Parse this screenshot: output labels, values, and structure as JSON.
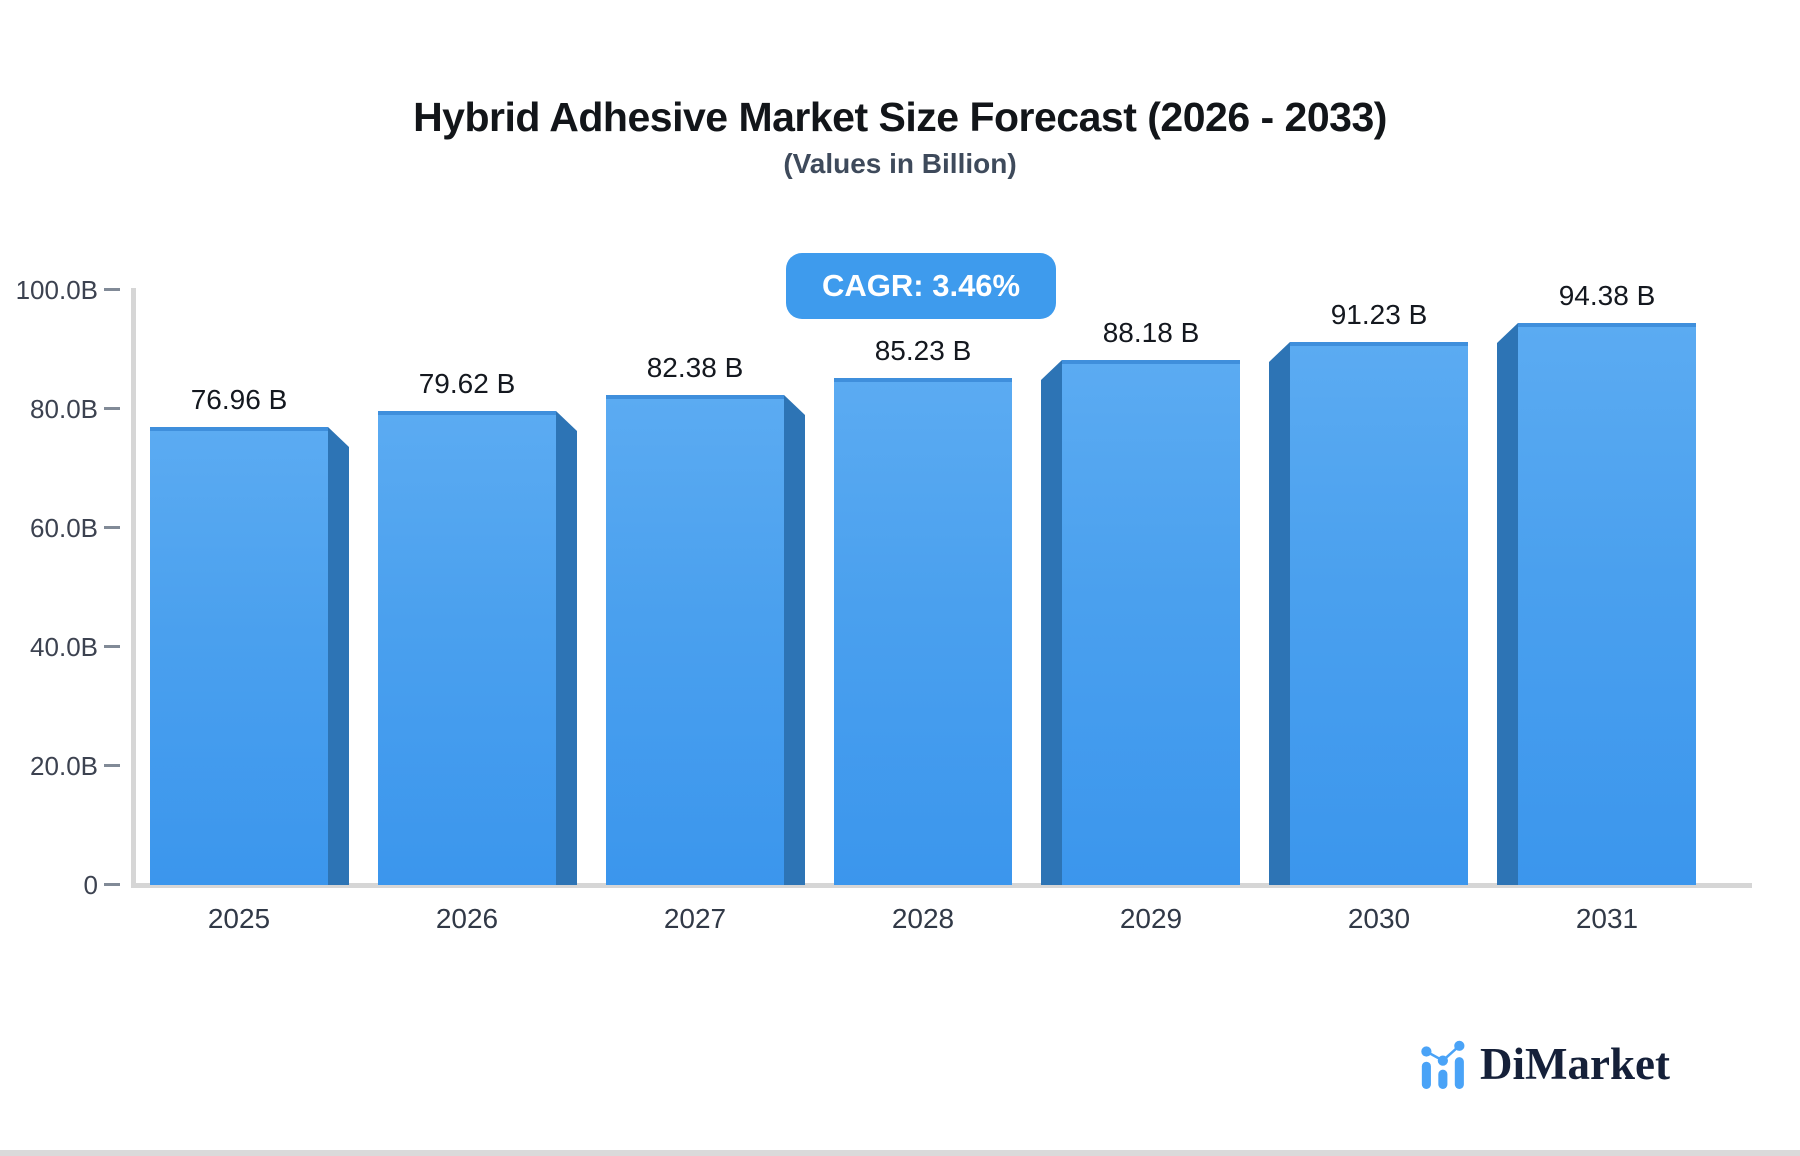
{
  "chart_data": {
    "type": "bar",
    "title": "Hybrid Adhesive Market Size Forecast (2026 - 2033)",
    "subtitle": "(Values in Billion)",
    "categories": [
      "2025",
      "2026",
      "2027",
      "2028",
      "2029",
      "2030",
      "2031"
    ],
    "values": [
      76.96,
      79.62,
      82.38,
      85.23,
      88.18,
      91.23,
      94.38
    ],
    "bar_labels": [
      "76.96 B",
      "79.62 B",
      "82.38 B",
      "85.23 B",
      "88.18 B",
      "91.23 B",
      "94.38 B"
    ],
    "unit": "Billion",
    "ylim": [
      0,
      100
    ],
    "yticks": [
      {
        "value": 0,
        "label": "0"
      },
      {
        "value": 20,
        "label": "20.0B"
      },
      {
        "value": 40,
        "label": "40.0B"
      },
      {
        "value": 60,
        "label": "60.0B"
      },
      {
        "value": 80,
        "label": "80.0B"
      },
      {
        "value": 100,
        "label": "100.0B"
      }
    ],
    "grid": false,
    "legend": false,
    "colors": {
      "bar_front_top": "#5babf2",
      "bar_front_mid": "#4aa0ee",
      "bar_front_bottom": "#3b96ed",
      "bar_top_edge": "#3f8fdc",
      "bar_side": "#2d74b5",
      "axis_line": "#d6d6d6",
      "tick_text": "#3c4250",
      "value_text": "#14181f"
    }
  },
  "badge": {
    "label": "CAGR: 3.46%",
    "bg_color": "#3e9bed",
    "text_color": "#ffffff"
  },
  "logo": {
    "text": "DiMarket",
    "icon": "mini-bar-chart-icon",
    "text_color": "#152039",
    "icon_color": "#4aa3f7"
  }
}
